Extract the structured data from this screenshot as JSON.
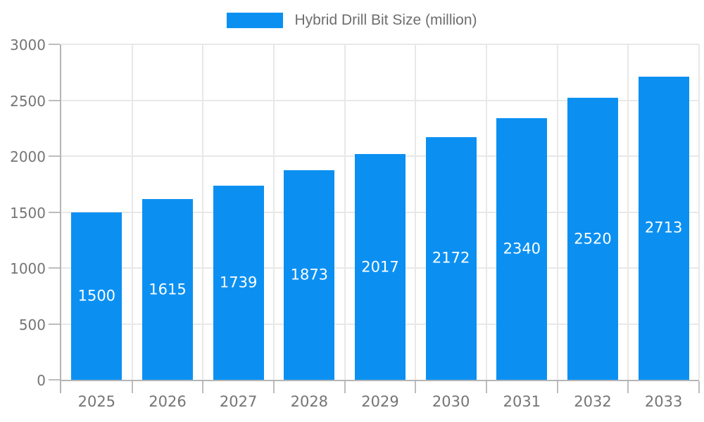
{
  "chart_data": {
    "type": "bar",
    "title": "Hybrid Drill Bit Size (million)",
    "categories": [
      "2025",
      "2026",
      "2027",
      "2028",
      "2029",
      "2030",
      "2031",
      "2032",
      "2033"
    ],
    "series": [
      {
        "name": "Hybrid Drill Bit Size (million)",
        "values": [
          1500,
          1615,
          1739,
          1873,
          2017,
          2172,
          2340,
          2520,
          2713
        ]
      }
    ],
    "values": [
      1500,
      1615,
      1739,
      1873,
      2017,
      2172,
      2340,
      2520,
      2713
    ],
    "value_labels": [
      "1500",
      "1615",
      "1739",
      "1873",
      "2017",
      "2172",
      "2340",
      "2520",
      "2713"
    ],
    "xlabel": "",
    "ylabel": "",
    "ylim": [
      0,
      3000
    ],
    "yticks": [
      0,
      500,
      1000,
      1500,
      2000,
      2500,
      3000
    ],
    "grid": "horizontal and vertical gridlines on",
    "legend_position": "top-center",
    "colors": {
      "bar_fill": "#0b90f2",
      "bar_value_text": "#ffffff",
      "axis_text": "#757575",
      "legend_text": "#6e6e6e",
      "grid_line": "#e8e8e8",
      "axis_line": "#b5b5b5",
      "background": "#ffffff"
    }
  }
}
